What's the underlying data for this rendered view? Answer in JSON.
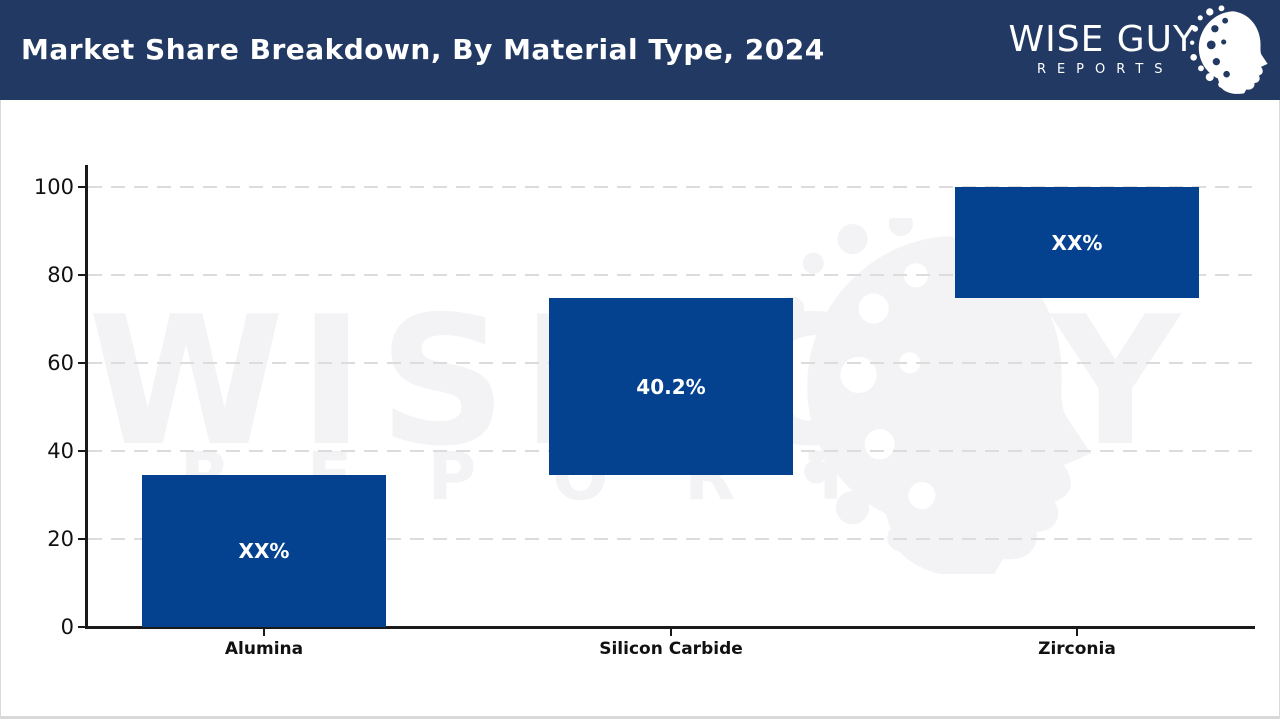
{
  "header": {
    "title": "Market Share Breakdown, By Material Type, 2024",
    "logo": {
      "brand_line1": "WISE GUY",
      "brand_line2": "REPORTS"
    }
  },
  "watermark": {
    "line1": "WISE GUY",
    "line2": "REPORTS"
  },
  "colors": {
    "header_bg": "#223a63",
    "bar": "#04418f",
    "bar_label": "#ffffff",
    "gridline": "#dcdcdc",
    "axis": "#1a1a1a",
    "watermark": "#f3f3f5",
    "bottom_rule": "#d9d9d9"
  },
  "chart_data": {
    "type": "bar",
    "subtype": "waterfall-style floating column chart",
    "title": "Market Share Breakdown, By Material Type, 2024",
    "categories": [
      "Alumina",
      "Silicon Carbide",
      "Zirconia"
    ],
    "segments": [
      {
        "category": "Alumina",
        "start": 0,
        "end": 34.5,
        "value_label": "XX%"
      },
      {
        "category": "Silicon Carbide",
        "start": 34.5,
        "end": 74.7,
        "value": 40.2,
        "value_label": "40.2%"
      },
      {
        "category": "Zirconia",
        "start": 74.7,
        "end": 100,
        "value_label": "XX%"
      }
    ],
    "xlabel": "",
    "ylabel": "",
    "yticks": [
      0,
      20,
      40,
      60,
      80,
      100
    ],
    "ylim": [
      0,
      105
    ],
    "grid": "horizontal dashed",
    "legend": "none"
  }
}
